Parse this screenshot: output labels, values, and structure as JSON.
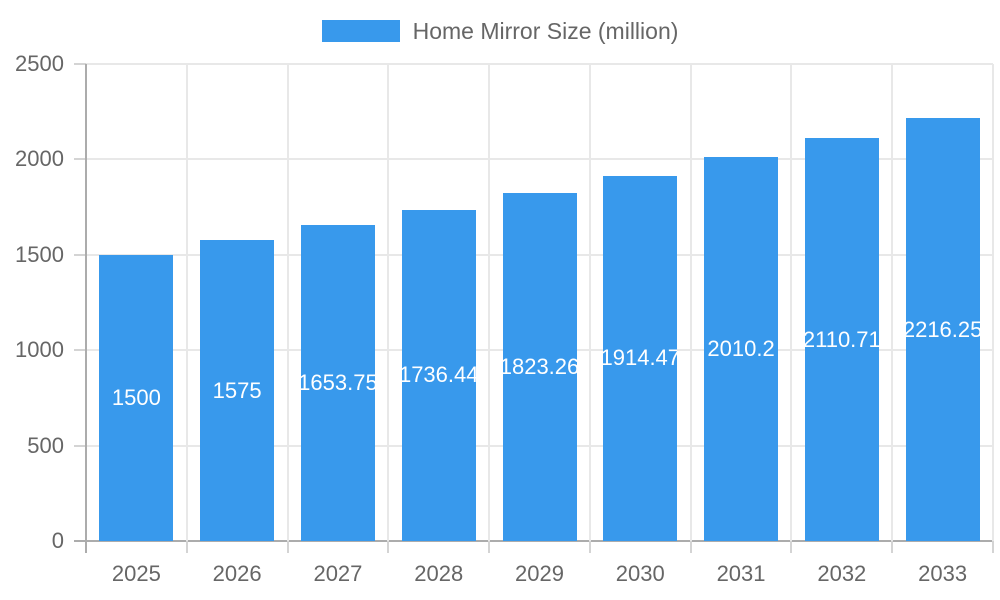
{
  "legend": {
    "label": "Home Mirror Size (million)"
  },
  "chart_data": {
    "type": "bar",
    "title": "",
    "xlabel": "",
    "ylabel": "",
    "legend_position": "top",
    "grid": true,
    "series_name": "Home Mirror Size (million)",
    "categories": [
      "2025",
      "2026",
      "2027",
      "2028",
      "2029",
      "2030",
      "2031",
      "2032",
      "2033"
    ],
    "values": [
      1500,
      1575,
      1653.75,
      1736.44,
      1823.26,
      1914.47,
      2010.2,
      2110.71,
      2216.25
    ],
    "value_labels": [
      "1500",
      "1575",
      "1653.75",
      "1736.44",
      "1823.26",
      "1914.47",
      "2010.2",
      "2110.71",
      "2216.25"
    ],
    "ylim": [
      0,
      2500
    ],
    "yticks": [
      0,
      500,
      1000,
      1500,
      2000,
      2500
    ],
    "colors": {
      "bar": "#3899EC",
      "text": "#666666",
      "grid": "#E8E8E8",
      "axis": "#ACACAC",
      "tick": "#D4D4D4",
      "value_label": "#FFFFFF"
    }
  }
}
